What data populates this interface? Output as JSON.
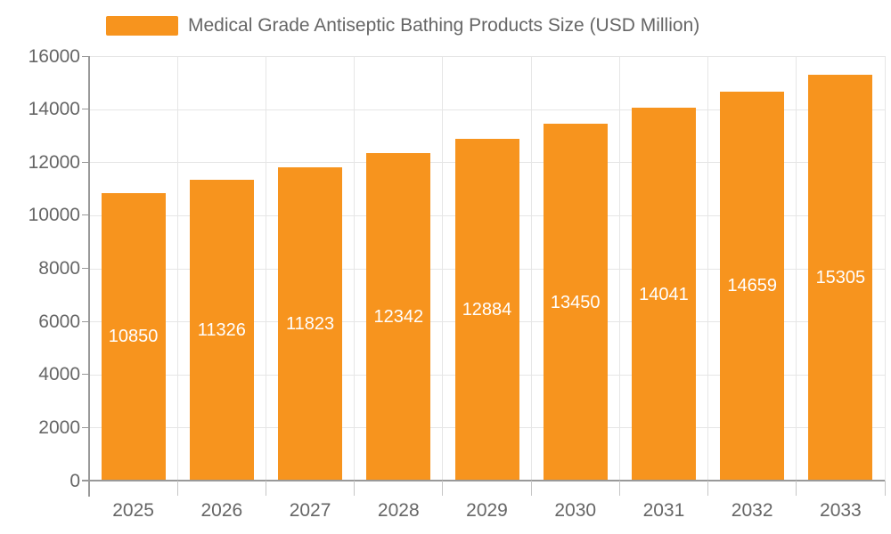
{
  "chart_data": {
    "type": "bar",
    "title": "Medical Grade Antiseptic Bathing Products Size (USD Million)",
    "categories": [
      "2025",
      "2026",
      "2027",
      "2028",
      "2029",
      "2030",
      "2031",
      "2032",
      "2033"
    ],
    "values": [
      10850,
      11326,
      11823,
      12342,
      12884,
      13450,
      14041,
      14659,
      15305
    ],
    "series_name": "Medical Grade Antiseptic Bathing Products Size (USD Million)",
    "xlabel": "",
    "ylabel": "",
    "ylim": [
      0,
      16000
    ],
    "y_tick_step": 2000,
    "y_tick_labels": [
      "0",
      "2000",
      "4000",
      "6000",
      "8000",
      "10000",
      "12000",
      "14000",
      "16000"
    ],
    "grid": true,
    "legend_position": "top-left",
    "bar_labels_visible": true,
    "colors": {
      "bar": "#F7941E",
      "bar_label": "#FFFFFF",
      "title": "#666666",
      "axis_label": "#666666",
      "gridline": "#E6E6E6",
      "axis_line": "#999999",
      "tick": "#C6C6C6",
      "background": "#FFFFFF"
    }
  }
}
